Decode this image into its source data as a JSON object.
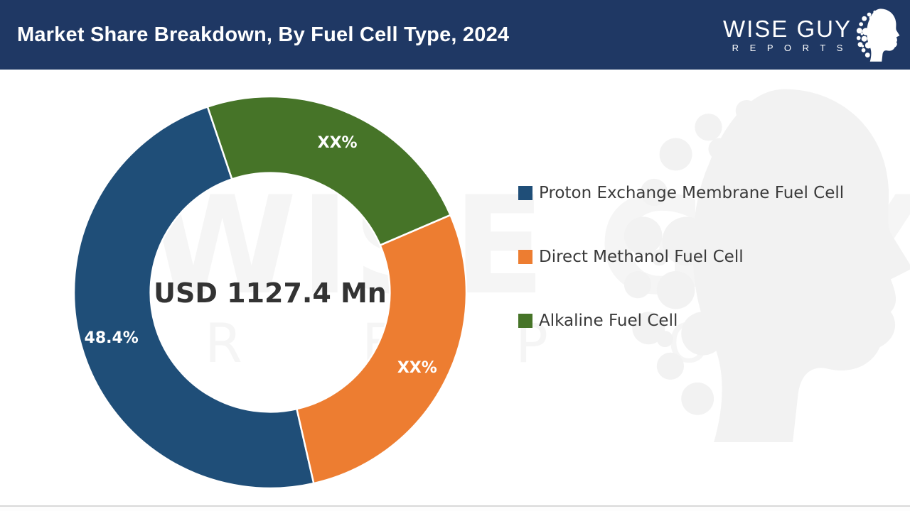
{
  "header": {
    "title": "Market Share Breakdown, By Fuel Cell Type, 2024",
    "background_color": "#1F3864",
    "logo": {
      "wordmark": "WISE GUY",
      "subtext": "R E P O R T S"
    }
  },
  "chart_data": {
    "type": "pie",
    "subtype": "donut",
    "title": "Market Share Breakdown, By Fuel Cell Type, 2024",
    "center_label": "USD 1127.4 Mn",
    "start_angle_deg": 108.6,
    "direction": "counterclockwise",
    "inner_radius_ratio": 0.61,
    "legend_position": "right",
    "series": [
      {
        "name": "Proton Exchange Membrane Fuel Cell",
        "display_label": "48.4%",
        "value_pct": 48.4,
        "color": "#1F4E78"
      },
      {
        "name": "Direct Methanol Fuel Cell",
        "display_label": "XX%",
        "value_pct": 27.9,
        "color": "#ED7D31"
      },
      {
        "name": "Alkaline Fuel Cell",
        "display_label": "XX%",
        "value_pct": 23.7,
        "color": "#467428"
      }
    ]
  },
  "watermark": {
    "line1": "WISE GUY",
    "line2": "R E P O R T S"
  },
  "colors": {
    "header_bg": "#1F3864",
    "center_text": "#333333",
    "legend_text": "#3A3A3A",
    "slice_label_text": "#FFFFFF",
    "watermark_gray": "#F5F5F5",
    "bottom_rule": "#D9D9D9"
  }
}
